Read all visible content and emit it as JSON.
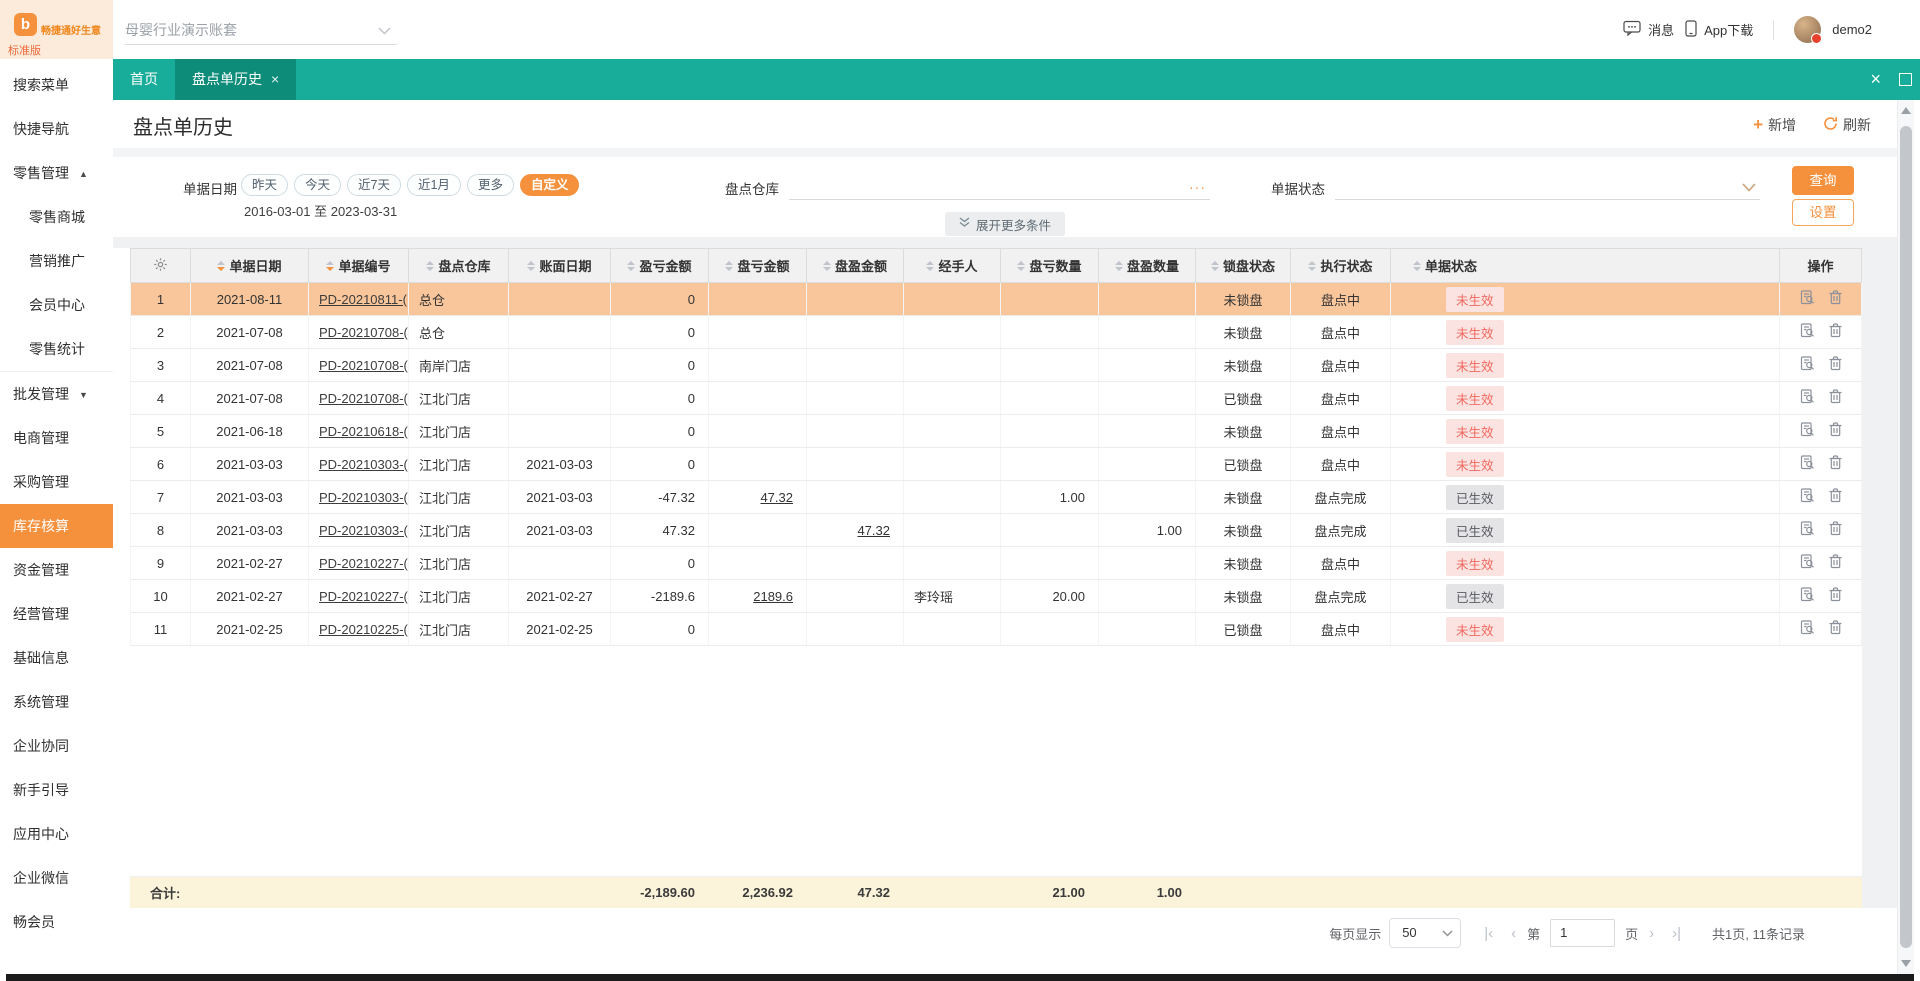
{
  "brand": {
    "name": "畅捷通好生意",
    "edition": "标准版",
    "logo_letter": "b"
  },
  "topbar": {
    "account": "母婴行业演示账套",
    "messages": "消息",
    "app_download": "App下载",
    "username": "demo2"
  },
  "tabs": {
    "home": "首页",
    "current": "盘点单历史"
  },
  "sidebar": {
    "items": [
      {
        "label": "搜索菜单"
      },
      {
        "label": "快捷导航"
      },
      {
        "label": "零售管理",
        "arrow": "up"
      },
      {
        "label": "零售商城",
        "sub": true
      },
      {
        "label": "营销推广",
        "sub": true
      },
      {
        "label": "会员中心",
        "sub": true
      },
      {
        "label": "零售统计",
        "sub": true
      },
      {
        "label": "批发管理",
        "arrow": "down",
        "divider": true
      },
      {
        "label": "电商管理"
      },
      {
        "label": "采购管理"
      },
      {
        "label": "库存核算",
        "active": true
      },
      {
        "label": "资金管理"
      },
      {
        "label": "经营管理"
      },
      {
        "label": "基础信息"
      },
      {
        "label": "系统管理"
      },
      {
        "label": "企业协同"
      },
      {
        "label": "新手引导"
      },
      {
        "label": "应用中心"
      },
      {
        "label": "企业微信"
      },
      {
        "label": "畅会员"
      }
    ]
  },
  "page": {
    "title": "盘点单历史",
    "add_label": "新增",
    "refresh_label": "刷新"
  },
  "filters": {
    "date_label": "单据日期",
    "date_quick": [
      "昨天",
      "今天",
      "近7天",
      "近1月",
      "更多"
    ],
    "date_custom": "自定义",
    "date_range": "2016-03-01 至 2023-03-31",
    "warehouse_label": "盘点仓库",
    "warehouse_more": "···",
    "status_label": "单据状态",
    "search_label": "查询",
    "settings_label": "设置",
    "expand_label": "展开更多条件"
  },
  "table": {
    "columns": [
      {
        "label": "单据日期",
        "sort": "desc"
      },
      {
        "label": "单据编号",
        "sort": "desc"
      },
      {
        "label": "盘点仓库",
        "sort": "both"
      },
      {
        "label": "账面日期",
        "sort": "both"
      },
      {
        "label": "盈亏金额",
        "sort": "both"
      },
      {
        "label": "盘亏金额",
        "sort": "both"
      },
      {
        "label": "盘盈金额",
        "sort": "both"
      },
      {
        "label": "经手人",
        "sort": "both"
      },
      {
        "label": "盘亏数量",
        "sort": "both"
      },
      {
        "label": "盘盈数量",
        "sort": "both"
      },
      {
        "label": "锁盘状态",
        "sort": "both"
      },
      {
        "label": "执行状态",
        "sort": "both"
      },
      {
        "label": "单据状态",
        "sort": "both"
      },
      {
        "label": "操作",
        "sort": "none"
      }
    ],
    "rows": [
      {
        "no": "1",
        "date": "2021-08-11",
        "doc_no": "PD-20210811-(",
        "warehouse": "总仓",
        "book_date": "",
        "pl_amount": "0",
        "loss_amount": "",
        "gain_amount": "",
        "handler": "",
        "loss_qty": "",
        "gain_qty": "",
        "lock_status": "未锁盘",
        "exec_status": "盘点中",
        "doc_status": "未生效",
        "highlight": true
      },
      {
        "no": "2",
        "date": "2021-07-08",
        "doc_no": "PD-20210708-(",
        "warehouse": "总仓",
        "book_date": "",
        "pl_amount": "0",
        "loss_amount": "",
        "gain_amount": "",
        "handler": "",
        "loss_qty": "",
        "gain_qty": "",
        "lock_status": "未锁盘",
        "exec_status": "盘点中",
        "doc_status": "未生效"
      },
      {
        "no": "3",
        "date": "2021-07-08",
        "doc_no": "PD-20210708-(",
        "warehouse": "南岸门店",
        "book_date": "",
        "pl_amount": "0",
        "loss_amount": "",
        "gain_amount": "",
        "handler": "",
        "loss_qty": "",
        "gain_qty": "",
        "lock_status": "未锁盘",
        "exec_status": "盘点中",
        "doc_status": "未生效"
      },
      {
        "no": "4",
        "date": "2021-07-08",
        "doc_no": "PD-20210708-(",
        "warehouse": "江北门店",
        "book_date": "",
        "pl_amount": "0",
        "loss_amount": "",
        "gain_amount": "",
        "handler": "",
        "loss_qty": "",
        "gain_qty": "",
        "lock_status": "已锁盘",
        "exec_status": "盘点中",
        "doc_status": "未生效"
      },
      {
        "no": "5",
        "date": "2021-06-18",
        "doc_no": "PD-20210618-(",
        "warehouse": "江北门店",
        "book_date": "",
        "pl_amount": "0",
        "loss_amount": "",
        "gain_amount": "",
        "handler": "",
        "loss_qty": "",
        "gain_qty": "",
        "lock_status": "未锁盘",
        "exec_status": "盘点中",
        "doc_status": "未生效"
      },
      {
        "no": "6",
        "date": "2021-03-03",
        "doc_no": "PD-20210303-(",
        "warehouse": "江北门店",
        "book_date": "2021-03-03",
        "pl_amount": "0",
        "loss_amount": "",
        "gain_amount": "",
        "handler": "",
        "loss_qty": "",
        "gain_qty": "",
        "lock_status": "已锁盘",
        "exec_status": "盘点中",
        "doc_status": "未生效"
      },
      {
        "no": "7",
        "date": "2021-03-03",
        "doc_no": "PD-20210303-(",
        "warehouse": "江北门店",
        "book_date": "2021-03-03",
        "pl_amount": "-47.32",
        "loss_amount": "47.32",
        "gain_amount": "",
        "handler": "",
        "loss_qty": "1.00",
        "gain_qty": "",
        "lock_status": "未锁盘",
        "exec_status": "盘点完成",
        "doc_status": "已生效"
      },
      {
        "no": "8",
        "date": "2021-03-03",
        "doc_no": "PD-20210303-(",
        "warehouse": "江北门店",
        "book_date": "2021-03-03",
        "pl_amount": "47.32",
        "loss_amount": "",
        "gain_amount": "47.32",
        "handler": "",
        "loss_qty": "",
        "gain_qty": "1.00",
        "lock_status": "未锁盘",
        "exec_status": "盘点完成",
        "doc_status": "已生效"
      },
      {
        "no": "9",
        "date": "2021-02-27",
        "doc_no": "PD-20210227-(",
        "warehouse": "江北门店",
        "book_date": "",
        "pl_amount": "0",
        "loss_amount": "",
        "gain_amount": "",
        "handler": "",
        "loss_qty": "",
        "gain_qty": "",
        "lock_status": "未锁盘",
        "exec_status": "盘点中",
        "doc_status": "未生效"
      },
      {
        "no": "10",
        "date": "2021-02-27",
        "doc_no": "PD-20210227-(",
        "warehouse": "江北门店",
        "book_date": "2021-02-27",
        "pl_amount": "-2189.6",
        "loss_amount": "2189.6",
        "gain_amount": "",
        "handler": "李玲瑶",
        "loss_qty": "20.00",
        "gain_qty": "",
        "lock_status": "未锁盘",
        "exec_status": "盘点完成",
        "doc_status": "已生效"
      },
      {
        "no": "11",
        "date": "2021-02-25",
        "doc_no": "PD-20210225-(",
        "warehouse": "江北门店",
        "book_date": "2021-02-25",
        "pl_amount": "0",
        "loss_amount": "",
        "gain_amount": "",
        "handler": "",
        "loss_qty": "",
        "gain_qty": "",
        "lock_status": "已锁盘",
        "exec_status": "盘点中",
        "doc_status": "未生效"
      }
    ],
    "total": {
      "label": "合计:",
      "pl_amount": "-2,189.60",
      "loss_amount": "2,236.92",
      "gain_amount": "47.32",
      "loss_qty": "21.00",
      "gain_qty": "1.00"
    }
  },
  "pagination": {
    "per_page_label": "每页显示",
    "per_page": "50",
    "page_prefix": "第",
    "page": "1",
    "page_suffix": "页",
    "summary": "共1页, 11条记录"
  },
  "colors": {
    "accent_orange": "#f5913d",
    "tabbar_teal": "#18ad9a",
    "tab_active_teal": "#0e8c7a",
    "row_highlight": "#f9c59a",
    "badge_inactive_bg": "#fbe3e1",
    "badge_inactive_text": "#f1695f",
    "badge_active_bg": "#e4e4e7",
    "badge_active_text": "#595b60",
    "total_row_bg": "#fcf4da"
  }
}
